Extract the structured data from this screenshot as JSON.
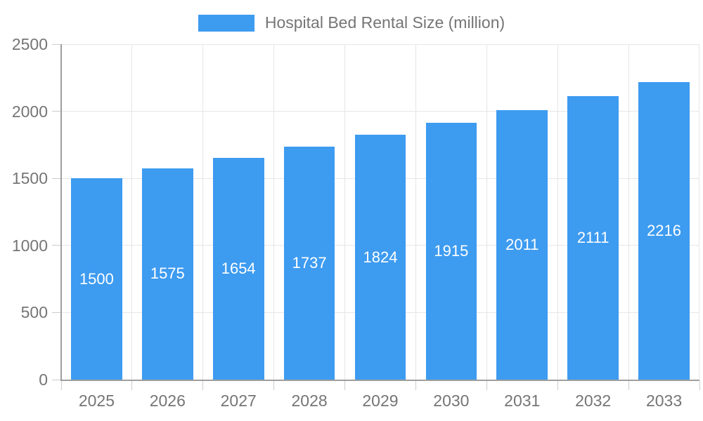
{
  "chart_data": {
    "type": "bar",
    "title": "Hospital Bed Rental Size (million)",
    "series_name": "Hospital Bed Rental Size (million)",
    "categories": [
      "2025",
      "2026",
      "2027",
      "2028",
      "2029",
      "2030",
      "2031",
      "2032",
      "2033"
    ],
    "values": [
      1500,
      1575,
      1654,
      1737,
      1824,
      1915,
      2011,
      2111,
      2216
    ],
    "xlabel": "",
    "ylabel": "",
    "ylim": [
      0,
      2500
    ],
    "yticks": [
      0,
      500,
      1000,
      1500,
      2000,
      2500
    ],
    "grid": true,
    "legend_position": "top",
    "bar_labels_inside": true,
    "style": {
      "bar_color": "#3D9BF0",
      "bar_label_color": "#ffffff",
      "grid_color": "#e6e6e6",
      "tick_color": "#cccccc",
      "axis_color": "#9e9e9e",
      "axis_text_color": "#757575",
      "background_color": "#ffffff"
    }
  }
}
